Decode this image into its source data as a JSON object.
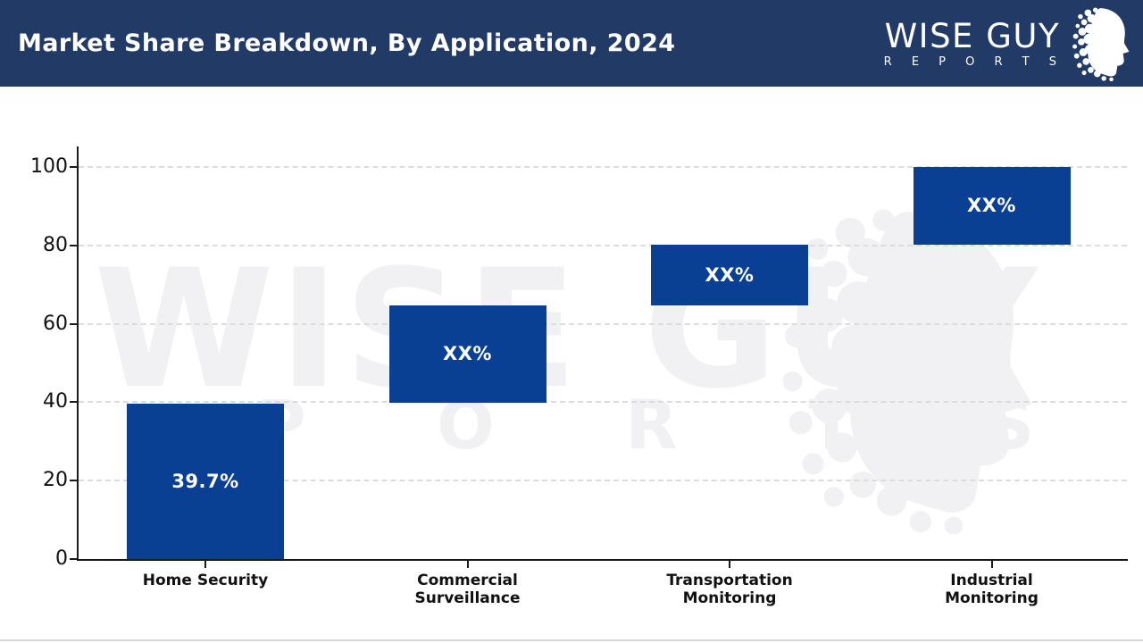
{
  "header": {
    "title": "Market Share Breakdown, By Application, 2024",
    "bg_color": "#213a66",
    "logo": {
      "wordmark": "WISE GUY",
      "subtext": "R E P O R T S"
    }
  },
  "watermark": {
    "wordmark": "WISE GUY",
    "subtext": "P O R T S"
  },
  "chart_data": {
    "type": "bar",
    "subtype": "waterfall",
    "title": "Market Share Breakdown, By Application, 2024",
    "categories": [
      "Home Security",
      "Commercial Surveillance",
      "Transportation Monitoring",
      "Industrial Monitoring"
    ],
    "segments": [
      {
        "category": "Home Security",
        "start": 0,
        "end": 39.7,
        "label": "39.7%"
      },
      {
        "category": "Commercial Surveillance",
        "start": 39.9,
        "end": 64.7,
        "label": "XX%"
      },
      {
        "category": "Transportation Monitoring",
        "start": 64.6,
        "end": 80.2,
        "label": "XX%"
      },
      {
        "category": "Industrial Monitoring",
        "start": 80.1,
        "end": 100.1,
        "label": "XX%"
      }
    ],
    "yticks": [
      0,
      20,
      40,
      60,
      80,
      100
    ],
    "ylim": [
      0,
      105
    ],
    "xlabel": "",
    "ylabel": "",
    "grid": "horizontal-dashed",
    "legend": "none",
    "colors": {
      "bar": "#0a4094",
      "grid": "#dcdcdc",
      "axis": "#1a1a1a",
      "tick_text": "#111111",
      "bar_label_text": "#ffffff",
      "watermark": "#f1f1f4"
    }
  }
}
